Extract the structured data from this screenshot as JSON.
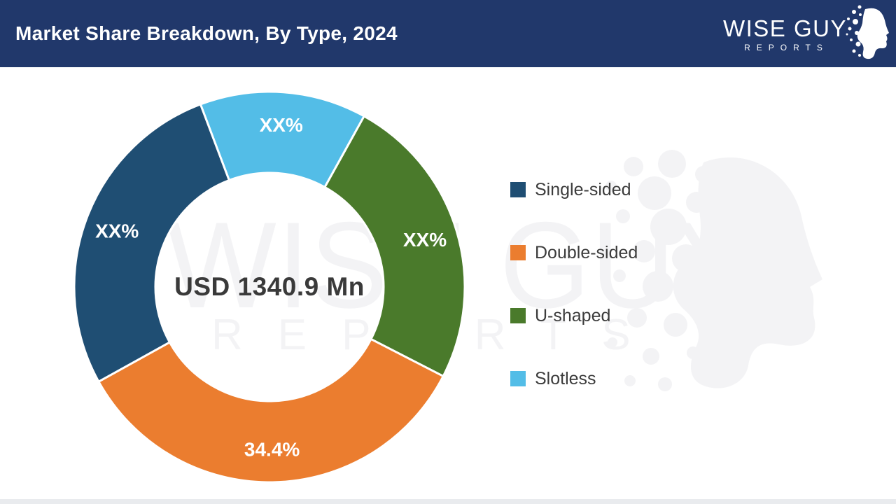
{
  "header": {
    "title": "Market Share Breakdown, By Type, 2024",
    "logo": {
      "line1": "WISE GUY",
      "line2": "REPORTS"
    }
  },
  "watermark": {
    "line1": "WISE GUY",
    "line2": "REPORTS"
  },
  "chart_data": {
    "type": "pie",
    "subtype": "donut",
    "title": "Market Share Breakdown, By Type, 2024",
    "center_label": "USD 1340.9 Mn",
    "units": "% market share",
    "start_angle_deg": -20.7,
    "inner_radius_ratio": 0.58,
    "legend_position": "right",
    "segments": [
      {
        "name": "Slotless",
        "value": 13.8,
        "label": "XX%",
        "color": "#53BDE7"
      },
      {
        "name": "U-shaped",
        "value": 24.5,
        "label": "XX%",
        "color": "#4A7A2B"
      },
      {
        "name": "Double-sided",
        "value": 34.4,
        "label": "34.4%",
        "color": "#EB7D2F"
      },
      {
        "name": "Single-sided",
        "value": 27.3,
        "label": "XX%",
        "color": "#1F4E73"
      }
    ]
  },
  "legend": {
    "items": [
      {
        "label": "Single-sided",
        "color": "#1F4E73"
      },
      {
        "label": "Double-sided",
        "color": "#EB7D2F"
      },
      {
        "label": "U-shaped",
        "color": "#4A7A2B"
      },
      {
        "label": "Slotless",
        "color": "#53BDE7"
      }
    ]
  },
  "colors": {
    "header_background": "#21386B",
    "header_text": "#FFFFFF",
    "center_text": "#3A3A3A",
    "legend_text": "#3C3C3C",
    "watermark": "#F3F3F5",
    "bottom_strip": "#E9EBEE"
  }
}
